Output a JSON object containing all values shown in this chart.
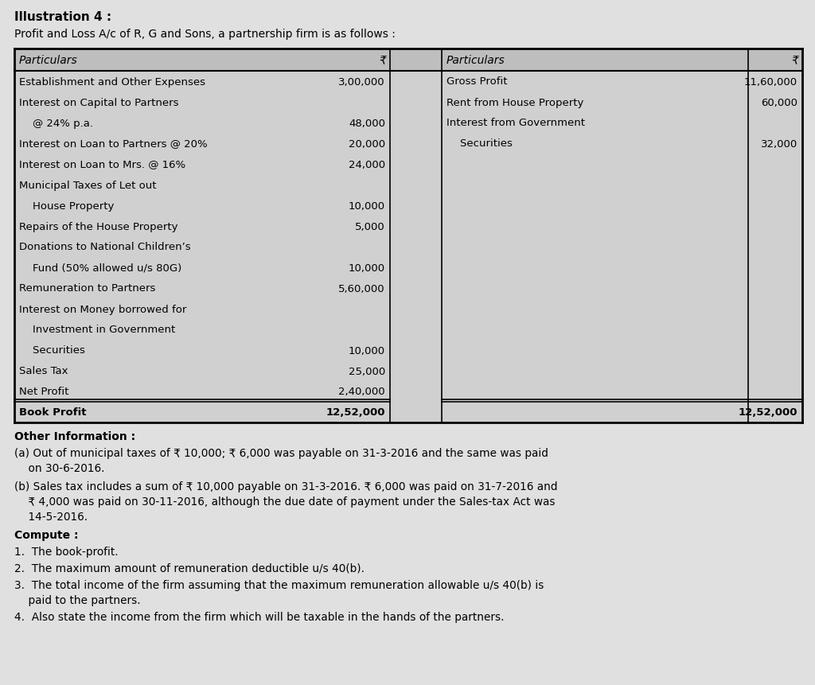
{
  "title_bold": "Illustration 4 :",
  "subtitle": "Profit and Loss A/c of R, G and Sons, a partnership firm is as follows :",
  "left_rows": [
    [
      "Establishment and Other Expenses",
      "3,00,000"
    ],
    [
      "Interest on Capital to Partners",
      ""
    ],
    [
      "    @ 24% p.a.",
      "48,000"
    ],
    [
      "Interest on Loan to Partners @ 20%",
      "20,000"
    ],
    [
      "Interest on Loan to Mrs. @ 16%",
      "24,000"
    ],
    [
      "Municipal Taxes of Let out",
      ""
    ],
    [
      "    House Property",
      "10,000"
    ],
    [
      "Repairs of the House Property",
      "5,000"
    ],
    [
      "Donations to National Children’s",
      ""
    ],
    [
      "    Fund (50% allowed u/s 80G)",
      "10,000"
    ],
    [
      "Remuneration to Partners",
      "5,60,000"
    ],
    [
      "Interest on Money borrowed for",
      ""
    ],
    [
      "    Investment in Government",
      ""
    ],
    [
      "    Securities",
      "10,000"
    ],
    [
      "Sales Tax",
      "25,000"
    ],
    [
      "Net Profit",
      "2,40,000"
    ],
    [
      "Book Profit",
      "12,52,000"
    ]
  ],
  "right_rows": [
    [
      "Gross Profit",
      "11,60,000"
    ],
    [
      "Rent from House Property",
      "60,000"
    ],
    [
      "Interest from Government",
      ""
    ],
    [
      "    Securities",
      "32,000"
    ],
    [
      "",
      ""
    ],
    [
      "",
      ""
    ],
    [
      "",
      ""
    ],
    [
      "",
      ""
    ],
    [
      "",
      ""
    ],
    [
      "",
      ""
    ],
    [
      "",
      ""
    ],
    [
      "",
      ""
    ],
    [
      "",
      ""
    ],
    [
      "",
      ""
    ],
    [
      "",
      ""
    ],
    [
      "",
      ""
    ],
    [
      "",
      "12,52,000"
    ]
  ],
  "other_info_title": "Other Information :",
  "other_info_a": "(a) Out of municipal taxes of ₹ 10,000; ₹ 6,000 was payable on 31-3-2016 and the same was paid",
  "other_info_a2": "    on 30-6-2016.",
  "other_info_b": "(b) Sales tax includes a sum of ₹ 10,000 payable on 31-3-2016. ₹ 6,000 was paid on 31-7-2016 and",
  "other_info_b2": "    ₹ 4,000 was paid on 30-11-2016, although the due date of payment under the Sales-tax Act was",
  "other_info_b3": "    14-5-2016.",
  "compute_title": "Compute :",
  "compute_1": "1.  The book-profit.",
  "compute_2": "2.  The maximum amount of remuneration deductible u/s 40(b).",
  "compute_3": "3.  The total income of the firm assuming that the maximum remuneration allowable u/s 40(b) is",
  "compute_3b": "    paid to the partners.",
  "compute_4": "4.  Also state the income from the firm which will be taxable in the hands of the partners.",
  "bg_color": "#e0e0e0",
  "table_bg": "#d0d0d0",
  "header_bg": "#bebebe"
}
